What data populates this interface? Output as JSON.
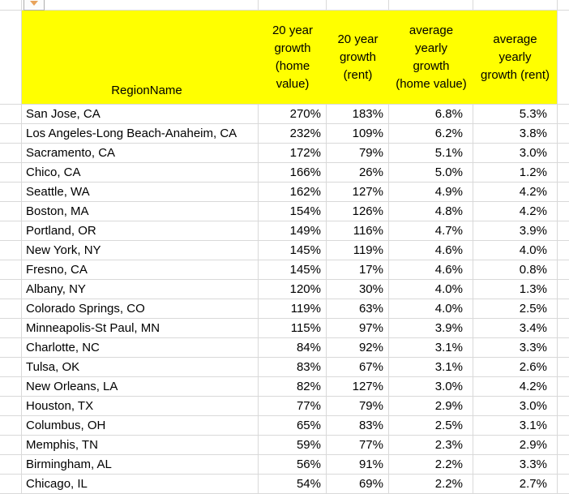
{
  "app": {
    "kind": "spreadsheet-region-growth-table"
  },
  "colors": {
    "header_bg": "#FFFF00",
    "gridline": "#D9D9D9",
    "text": "#000000",
    "dropdown_arrow": "#E8A35C",
    "dropdown_border": "#AEAEAE"
  },
  "toolbar": {
    "dropdown_button": {
      "icon": "dropdown-arrow-icon"
    }
  },
  "table": {
    "columns": [
      {
        "id": "region",
        "label": "RegionName"
      },
      {
        "id": "growth20_home",
        "label": "20 year\ngrowth\n(home\nvalue)"
      },
      {
        "id": "growth20_rent",
        "label": "20 year\ngrowth\n(rent)"
      },
      {
        "id": "avg_yearly_home",
        "label": "average\nyearly\ngrowth\n(home value)"
      },
      {
        "id": "avg_yearly_rent",
        "label": "average\nyearly\ngrowth (rent)"
      }
    ],
    "rows": [
      {
        "region": "San Jose, CA",
        "growth20_home": "270%",
        "growth20_rent": "183%",
        "avg_yearly_home": "6.8%",
        "avg_yearly_rent": "5.3%"
      },
      {
        "region": "Los Angeles-Long Beach-Anaheim, CA",
        "growth20_home": "232%",
        "growth20_rent": "109%",
        "avg_yearly_home": "6.2%",
        "avg_yearly_rent": "3.8%"
      },
      {
        "region": "Sacramento, CA",
        "growth20_home": "172%",
        "growth20_rent": "79%",
        "avg_yearly_home": "5.1%",
        "avg_yearly_rent": "3.0%"
      },
      {
        "region": "Chico, CA",
        "growth20_home": "166%",
        "growth20_rent": "26%",
        "avg_yearly_home": "5.0%",
        "avg_yearly_rent": "1.2%"
      },
      {
        "region": "Seattle, WA",
        "growth20_home": "162%",
        "growth20_rent": "127%",
        "avg_yearly_home": "4.9%",
        "avg_yearly_rent": "4.2%"
      },
      {
        "region": "Boston, MA",
        "growth20_home": "154%",
        "growth20_rent": "126%",
        "avg_yearly_home": "4.8%",
        "avg_yearly_rent": "4.2%"
      },
      {
        "region": "Portland, OR",
        "growth20_home": "149%",
        "growth20_rent": "116%",
        "avg_yearly_home": "4.7%",
        "avg_yearly_rent": "3.9%"
      },
      {
        "region": "New York, NY",
        "growth20_home": "145%",
        "growth20_rent": "119%",
        "avg_yearly_home": "4.6%",
        "avg_yearly_rent": "4.0%"
      },
      {
        "region": "Fresno, CA",
        "growth20_home": "145%",
        "growth20_rent": "17%",
        "avg_yearly_home": "4.6%",
        "avg_yearly_rent": "0.8%"
      },
      {
        "region": "Albany, NY",
        "growth20_home": "120%",
        "growth20_rent": "30%",
        "avg_yearly_home": "4.0%",
        "avg_yearly_rent": "1.3%"
      },
      {
        "region": "Colorado Springs, CO",
        "growth20_home": "119%",
        "growth20_rent": "63%",
        "avg_yearly_home": "4.0%",
        "avg_yearly_rent": "2.5%"
      },
      {
        "region": "Minneapolis-St Paul, MN",
        "growth20_home": "115%",
        "growth20_rent": "97%",
        "avg_yearly_home": "3.9%",
        "avg_yearly_rent": "3.4%"
      },
      {
        "region": "Charlotte, NC",
        "growth20_home": "84%",
        "growth20_rent": "92%",
        "avg_yearly_home": "3.1%",
        "avg_yearly_rent": "3.3%"
      },
      {
        "region": "Tulsa, OK",
        "growth20_home": "83%",
        "growth20_rent": "67%",
        "avg_yearly_home": "3.1%",
        "avg_yearly_rent": "2.6%"
      },
      {
        "region": "New Orleans, LA",
        "growth20_home": "82%",
        "growth20_rent": "127%",
        "avg_yearly_home": "3.0%",
        "avg_yearly_rent": "4.2%"
      },
      {
        "region": "Houston, TX",
        "growth20_home": "77%",
        "growth20_rent": "79%",
        "avg_yearly_home": "2.9%",
        "avg_yearly_rent": "3.0%"
      },
      {
        "region": "Columbus, OH",
        "growth20_home": "65%",
        "growth20_rent": "83%",
        "avg_yearly_home": "2.5%",
        "avg_yearly_rent": "3.1%"
      },
      {
        "region": "Memphis, TN",
        "growth20_home": "59%",
        "growth20_rent": "77%",
        "avg_yearly_home": "2.3%",
        "avg_yearly_rent": "2.9%"
      },
      {
        "region": "Birmingham, AL",
        "growth20_home": "56%",
        "growth20_rent": "91%",
        "avg_yearly_home": "2.2%",
        "avg_yearly_rent": "3.3%"
      },
      {
        "region": "Chicago, IL",
        "growth20_home": "54%",
        "growth20_rent": "69%",
        "avg_yearly_home": "2.2%",
        "avg_yearly_rent": "2.7%"
      }
    ]
  }
}
